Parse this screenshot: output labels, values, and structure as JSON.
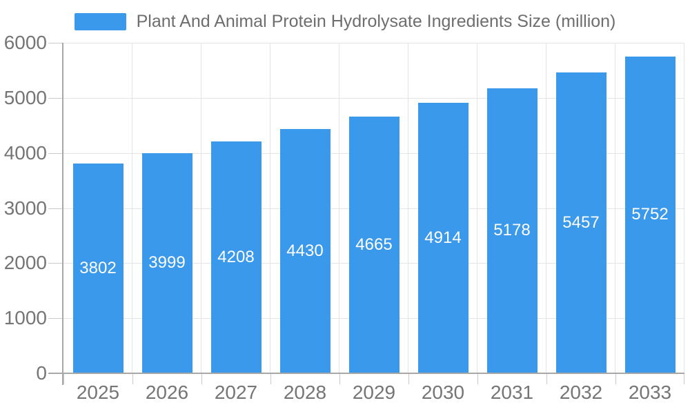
{
  "chart_data": {
    "type": "bar",
    "title": "Plant And Animal Protein Hydrolysate Ingredients Size (million)",
    "legend": {
      "position": "top",
      "entries": [
        "Plant And Animal Protein Hydrolysate Ingredients Size (million)"
      ]
    },
    "categories": [
      "2025",
      "2026",
      "2027",
      "2028",
      "2029",
      "2030",
      "2031",
      "2032",
      "2033"
    ],
    "values": [
      3802,
      3999,
      4208,
      4430,
      4665,
      4914,
      5178,
      5457,
      5752
    ],
    "xlabel": "",
    "ylabel": "",
    "ylim": [
      0,
      6000
    ],
    "yticks": [
      0,
      1000,
      2000,
      3000,
      4000,
      5000,
      6000
    ],
    "grid": true,
    "colors": {
      "bar": "#3b99ec",
      "value_label": "#ffffff",
      "axis_label": "#757575",
      "title": "#6e6e6e",
      "gridline": "#e4e4e4",
      "axis_line": "#a8a8a8",
      "tick_mark": "#c9c9c9",
      "background": "#ffffff"
    }
  }
}
